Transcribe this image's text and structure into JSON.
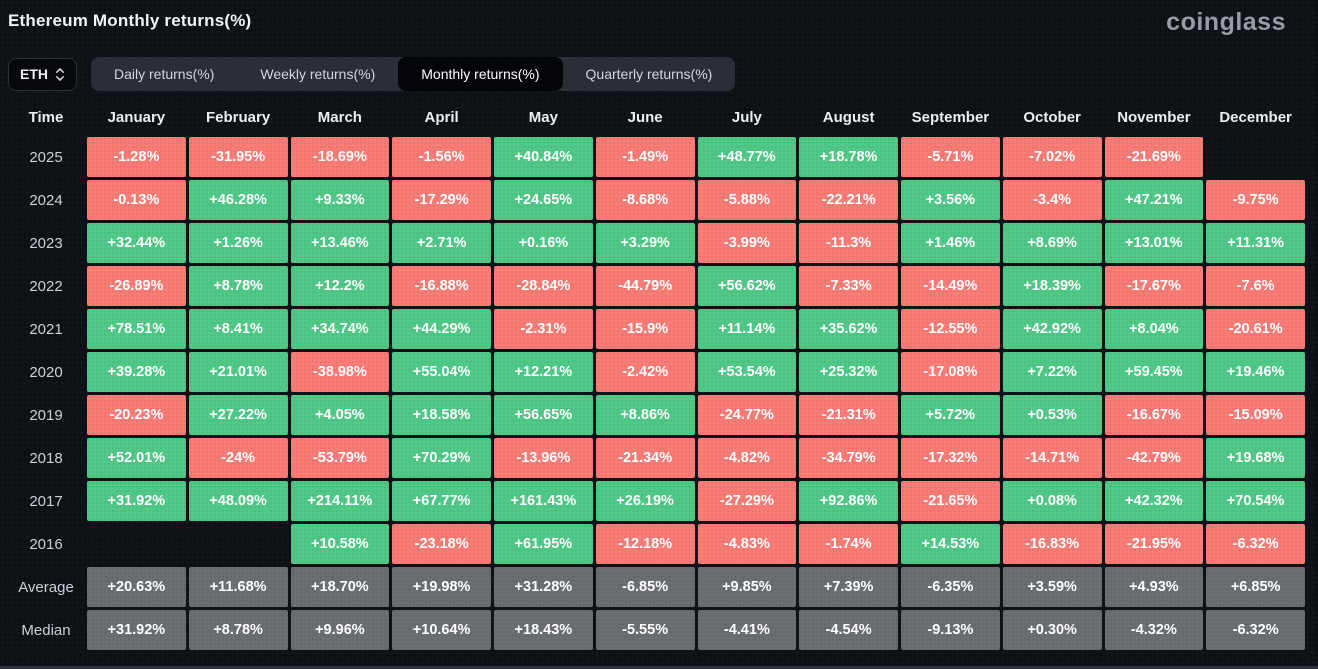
{
  "header": {
    "title": "Ethereum Monthly returns(%)",
    "logo": "coinglass"
  },
  "controls": {
    "symbol": "ETH",
    "tabs": [
      {
        "label": "Daily returns(%)",
        "active": false
      },
      {
        "label": "Weekly returns(%)",
        "active": false
      },
      {
        "label": "Monthly returns(%)",
        "active": true
      },
      {
        "label": "Quarterly returns(%)",
        "active": false
      }
    ]
  },
  "colors": {
    "positive": "#50c988",
    "negative": "#fa7c77",
    "summary": "#6b6e73",
    "background": "#0d1015",
    "tab_bar": "#2a2e35",
    "active_tab": "#030509"
  },
  "table": {
    "columns": [
      "Time",
      "January",
      "February",
      "March",
      "April",
      "May",
      "June",
      "July",
      "August",
      "September",
      "October",
      "November",
      "December"
    ],
    "rows": [
      {
        "label": "2025",
        "type": "year",
        "values": [
          "-1.28%",
          "-31.95%",
          "-18.69%",
          "-1.56%",
          "+40.84%",
          "-1.49%",
          "+48.77%",
          "+18.78%",
          "-5.71%",
          "-7.02%",
          "-21.69%",
          ""
        ]
      },
      {
        "label": "2024",
        "type": "year",
        "values": [
          "-0.13%",
          "+46.28%",
          "+9.33%",
          "-17.29%",
          "+24.65%",
          "-8.68%",
          "-5.88%",
          "-22.21%",
          "+3.56%",
          "-3.4%",
          "+47.21%",
          "-9.75%"
        ]
      },
      {
        "label": "2023",
        "type": "year",
        "values": [
          "+32.44%",
          "+1.26%",
          "+13.46%",
          "+2.71%",
          "+0.16%",
          "+3.29%",
          "-3.99%",
          "-11.3%",
          "+1.46%",
          "+8.69%",
          "+13.01%",
          "+11.31%"
        ]
      },
      {
        "label": "2022",
        "type": "year",
        "values": [
          "-26.89%",
          "+8.78%",
          "+12.2%",
          "-16.88%",
          "-28.84%",
          "-44.79%",
          "+56.62%",
          "-7.33%",
          "-14.49%",
          "+18.39%",
          "-17.67%",
          "-7.6%"
        ]
      },
      {
        "label": "2021",
        "type": "year",
        "values": [
          "+78.51%",
          "+8.41%",
          "+34.74%",
          "+44.29%",
          "-2.31%",
          "-15.9%",
          "+11.14%",
          "+35.62%",
          "-12.55%",
          "+42.92%",
          "+8.04%",
          "-20.61%"
        ]
      },
      {
        "label": "2020",
        "type": "year",
        "values": [
          "+39.28%",
          "+21.01%",
          "-38.98%",
          "+55.04%",
          "+12.21%",
          "-2.42%",
          "+53.54%",
          "+25.32%",
          "-17.08%",
          "+7.22%",
          "+59.45%",
          "+19.46%"
        ]
      },
      {
        "label": "2019",
        "type": "year",
        "values": [
          "-20.23%",
          "+27.22%",
          "+4.05%",
          "+18.58%",
          "+56.65%",
          "+8.86%",
          "-24.77%",
          "-21.31%",
          "+5.72%",
          "+0.53%",
          "-16.67%",
          "-15.09%"
        ]
      },
      {
        "label": "2018",
        "type": "year",
        "values": [
          "+52.01%",
          "-24%",
          "-53.79%",
          "+70.29%",
          "-13.96%",
          "-21.34%",
          "-4.82%",
          "-34.79%",
          "-17.32%",
          "-14.71%",
          "-42.79%",
          "+19.68%"
        ]
      },
      {
        "label": "2017",
        "type": "year",
        "values": [
          "+31.92%",
          "+48.09%",
          "+214.11%",
          "+67.77%",
          "+161.43%",
          "+26.19%",
          "-27.29%",
          "+92.86%",
          "-21.65%",
          "+0.08%",
          "+42.32%",
          "+70.54%"
        ]
      },
      {
        "label": "2016",
        "type": "year",
        "values": [
          "",
          "",
          "+10.58%",
          "-23.18%",
          "+61.95%",
          "-12.18%",
          "-4.83%",
          "-1.74%",
          "+14.53%",
          "-16.83%",
          "-21.95%",
          "-6.32%"
        ]
      },
      {
        "label": "Average",
        "type": "summary",
        "values": [
          "+20.63%",
          "+11.68%",
          "+18.70%",
          "+19.98%",
          "+31.28%",
          "-6.85%",
          "+9.85%",
          "+7.39%",
          "-6.35%",
          "+3.59%",
          "+4.93%",
          "+6.85%"
        ]
      },
      {
        "label": "Median",
        "type": "summary",
        "values": [
          "+31.92%",
          "+8.78%",
          "+9.96%",
          "+10.64%",
          "+18.43%",
          "-5.55%",
          "-4.41%",
          "-4.54%",
          "-9.13%",
          "+0.30%",
          "-4.32%",
          "-6.32%"
        ]
      }
    ]
  }
}
